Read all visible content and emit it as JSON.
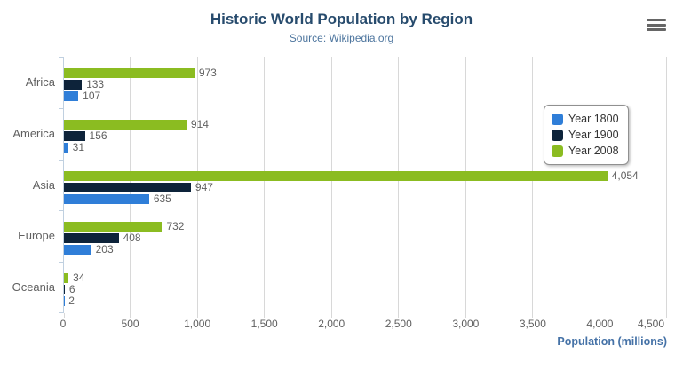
{
  "chart_data": {
    "type": "bar",
    "orientation": "horizontal",
    "title": "Historic World Population by Region",
    "subtitle": "Source: Wikipedia.org",
    "categories": [
      "Africa",
      "America",
      "Asia",
      "Europe",
      "Oceania"
    ],
    "series": [
      {
        "name": "Year 1800",
        "color": "#2f7ed8",
        "values": [
          107,
          31,
          635,
          203,
          2
        ]
      },
      {
        "name": "Year 1900",
        "color": "#0d233a",
        "values": [
          133,
          156,
          947,
          408,
          6
        ]
      },
      {
        "name": "Year 2008",
        "color": "#8bbc21",
        "values": [
          973,
          914,
          4054,
          732,
          34
        ]
      }
    ],
    "bar_display_order_top_to_bottom": [
      "Year 2008",
      "Year 1900",
      "Year 1800"
    ],
    "xlabel": "Population (millions)",
    "ylabel": "",
    "xlim": [
      0,
      4500
    ],
    "x_tick_values": [
      0,
      500,
      1000,
      1500,
      2000,
      2500,
      3000,
      3500,
      4000,
      4500
    ],
    "x_tick_labels": [
      "0",
      "500",
      "1,000",
      "1,500",
      "2,000",
      "2,500",
      "3,000",
      "3,500",
      "4,000",
      "4,500"
    ],
    "grid": true,
    "legend_position": "right",
    "data_labels_visible": true
  },
  "legend": {
    "items": [
      {
        "label": "Year 1800",
        "color": "#2f7ed8"
      },
      {
        "label": "Year 1900",
        "color": "#0d233a"
      },
      {
        "label": "Year 2008",
        "color": "#8bbc21"
      }
    ]
  },
  "colors": {
    "title": "#274b6d",
    "subtitle": "#4d759e",
    "axis_title": "#4572a7",
    "labels": "#606060",
    "gridline": "#d8d8d8",
    "axis_line": "#c0d0e0",
    "menu_icon": "#666666"
  },
  "menu": {
    "icon": "hamburger-icon"
  }
}
